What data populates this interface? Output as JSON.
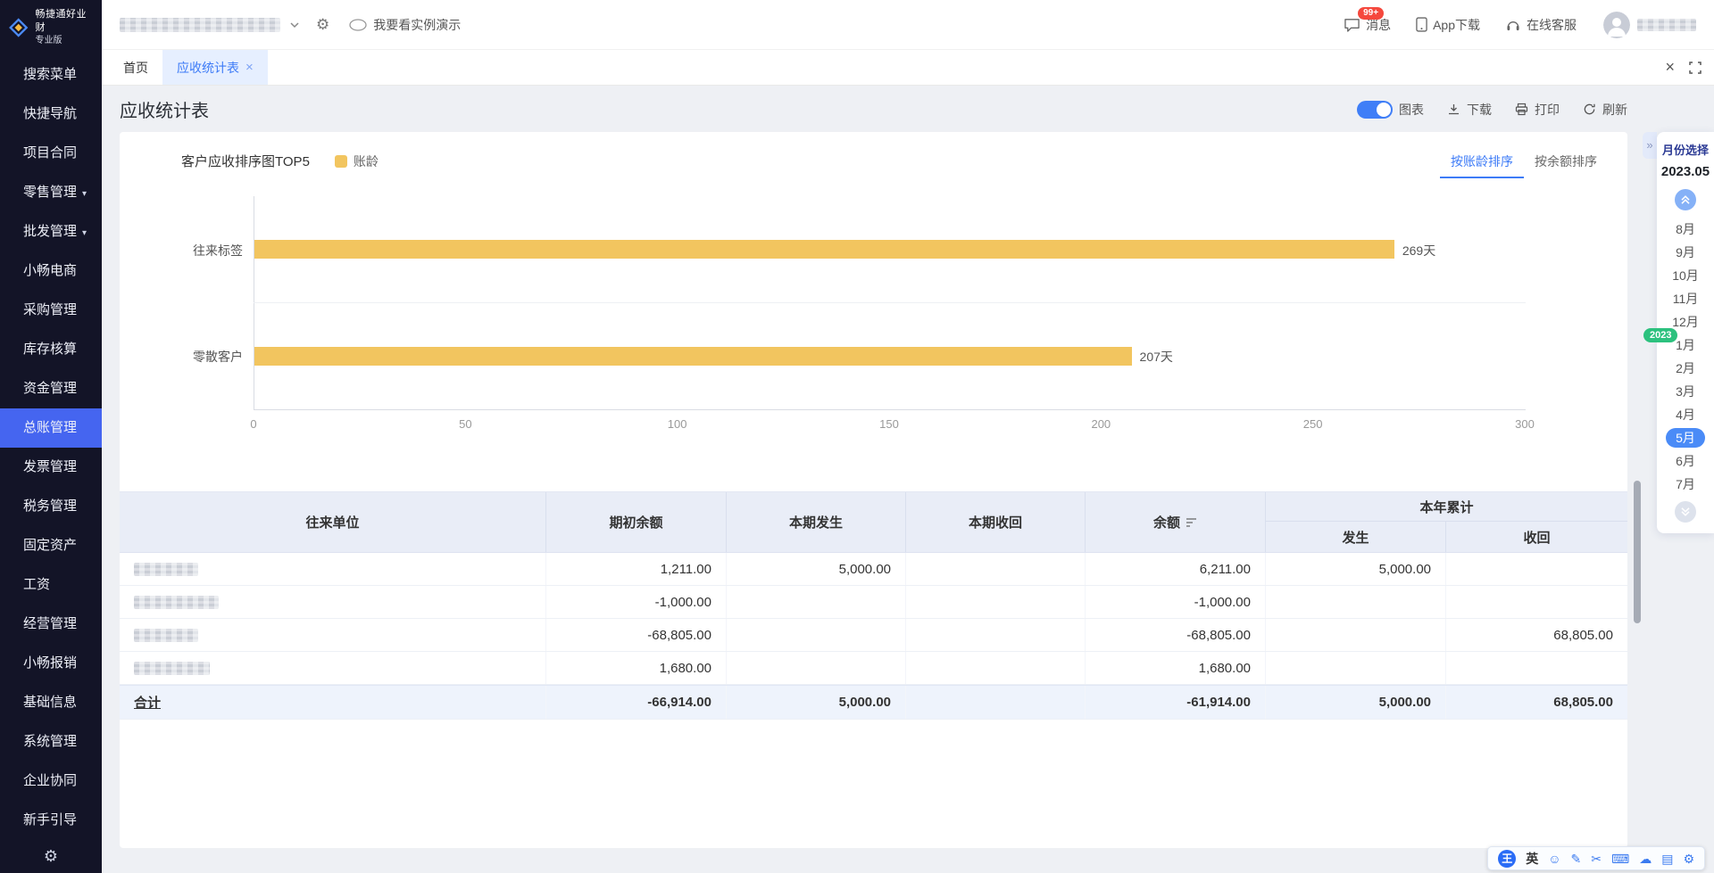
{
  "app": {
    "logo_title": "畅捷通好业财",
    "logo_subtitle": "专业版"
  },
  "sidebar": {
    "items": [
      {
        "label": "搜索菜单"
      },
      {
        "label": "快捷导航"
      },
      {
        "label": "项目合同"
      },
      {
        "label": "零售管理",
        "arrow": true
      },
      {
        "label": "批发管理",
        "arrow": true
      },
      {
        "label": "小畅电商"
      },
      {
        "label": "采购管理"
      },
      {
        "label": "库存核算"
      },
      {
        "label": "资金管理"
      },
      {
        "label": "总账管理",
        "selected": true
      },
      {
        "label": "发票管理"
      },
      {
        "label": "税务管理"
      },
      {
        "label": "固定资产"
      },
      {
        "label": "工资"
      },
      {
        "label": "经营管理"
      },
      {
        "label": "小畅报销"
      },
      {
        "label": "基础信息"
      },
      {
        "label": "系统管理"
      },
      {
        "label": "企业协同"
      },
      {
        "label": "新手引导"
      }
    ]
  },
  "topbar": {
    "demo_label": "我要看实例演示",
    "messages_label": "消息",
    "messages_badge": "99+",
    "app_download_label": "App下载",
    "service_label": "在线客服"
  },
  "tabbar": {
    "tabs": [
      {
        "label": "首页"
      },
      {
        "label": "应收统计表",
        "active": true,
        "closable": true
      }
    ]
  },
  "page": {
    "title": "应收统计表",
    "chart_toggle_label": "图表",
    "download_label": "下载",
    "print_label": "打印",
    "refresh_label": "刷新"
  },
  "chart": {
    "title": "客户应收排序图TOP5",
    "legend_label": "账龄",
    "bar_color": "#F2C55F",
    "sort_tabs": [
      {
        "label": "按账龄排序",
        "active": true
      },
      {
        "label": "按余额排序"
      }
    ]
  },
  "chart_data": {
    "type": "bar",
    "orientation": "horizontal",
    "title": "客户应收排序图TOP5",
    "categories": [
      "往来标签",
      "零散客户"
    ],
    "series": [
      {
        "name": "账龄",
        "values": [
          269,
          207
        ]
      }
    ],
    "value_labels": [
      "269天",
      "207天"
    ],
    "unit": "天",
    "xlim": [
      0,
      300
    ],
    "xticks": [
      0,
      50,
      100,
      150,
      200,
      250,
      300
    ],
    "legend_position": "top",
    "grid": true
  },
  "table": {
    "columns": [
      "往来单位",
      "期初余额",
      "本期发生",
      "本期收回",
      "余额"
    ],
    "group_header": {
      "label": "本年累计",
      "children": [
        "发生",
        "收回"
      ]
    },
    "rows": [
      {
        "name_redacted": true,
        "values": [
          "1,211.00",
          "5,000.00",
          "",
          "6,211.00",
          "5,000.00",
          ""
        ]
      },
      {
        "name_redacted": true,
        "values": [
          "-1,000.00",
          "",
          "",
          "-1,000.00",
          "",
          ""
        ]
      },
      {
        "name_redacted": true,
        "values": [
          "-68,805.00",
          "",
          "",
          "-68,805.00",
          "",
          "68,805.00"
        ]
      },
      {
        "name_redacted": true,
        "values": [
          "1,680.00",
          "",
          "",
          "1,680.00",
          "",
          ""
        ]
      }
    ],
    "total": {
      "label": "合计",
      "values": [
        "-66,914.00",
        "5,000.00",
        "",
        "-61,914.00",
        "5,000.00",
        "68,805.00"
      ]
    }
  },
  "month_panel": {
    "title": "月份选择",
    "current": "2023.05",
    "year_badge": "2023",
    "months": [
      "8月",
      "9月",
      "10月",
      "11月",
      "12月",
      "1月",
      "2月",
      "3月",
      "4月",
      "5月",
      "6月",
      "7月"
    ],
    "selected": "5月",
    "collapse_icon": "»"
  },
  "ime": {
    "logo": "王",
    "mode": "英",
    "icons": [
      "emoji",
      "handwriting",
      "screenshot",
      "keyboard",
      "cloud",
      "toolbox",
      "settings"
    ]
  }
}
